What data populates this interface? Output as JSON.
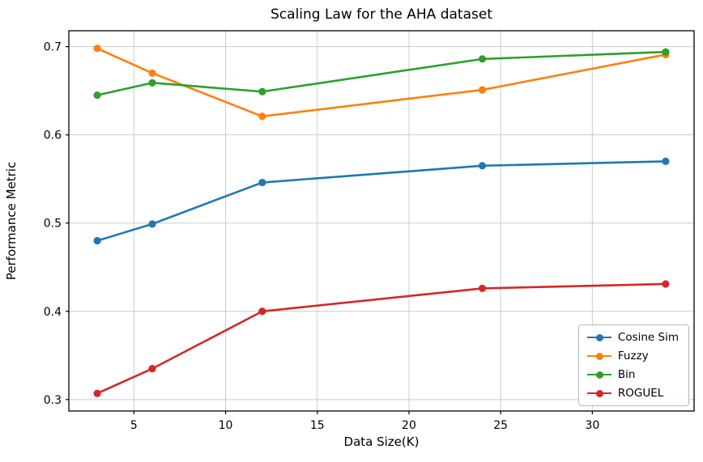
{
  "chart_data": {
    "type": "line",
    "title": "Scaling Law for the AHA dataset",
    "xlabel": "Data Size(K)",
    "ylabel": "Performance Metric",
    "x": [
      3,
      6,
      12,
      24,
      34
    ],
    "series": [
      {
        "name": "Cosine Sim",
        "color": "#1f77b4",
        "values": [
          0.48,
          0.499,
          0.546,
          0.565,
          0.57
        ]
      },
      {
        "name": "Fuzzy",
        "color": "#ff7f0e",
        "values": [
          0.698,
          0.67,
          0.621,
          0.651,
          0.691
        ]
      },
      {
        "name": "Bin",
        "color": "#2ca02c",
        "values": [
          0.645,
          0.659,
          0.649,
          0.686,
          0.694
        ]
      },
      {
        "name": "ROGUEL",
        "color": "#d62728",
        "values": [
          0.307,
          0.335,
          0.4,
          0.426,
          0.431
        ]
      }
    ],
    "xticks": [
      5,
      10,
      15,
      20,
      25,
      30
    ],
    "yticks": [
      0.3,
      0.4,
      0.5,
      0.6,
      0.7
    ],
    "xlim": [
      1.45,
      35.55
    ],
    "ylim": [
      0.287,
      0.718
    ],
    "grid": true,
    "legend": {
      "position": "lower right",
      "entries": [
        "Cosine Sim",
        "Fuzzy",
        "Bin",
        "ROGUEL"
      ]
    }
  }
}
